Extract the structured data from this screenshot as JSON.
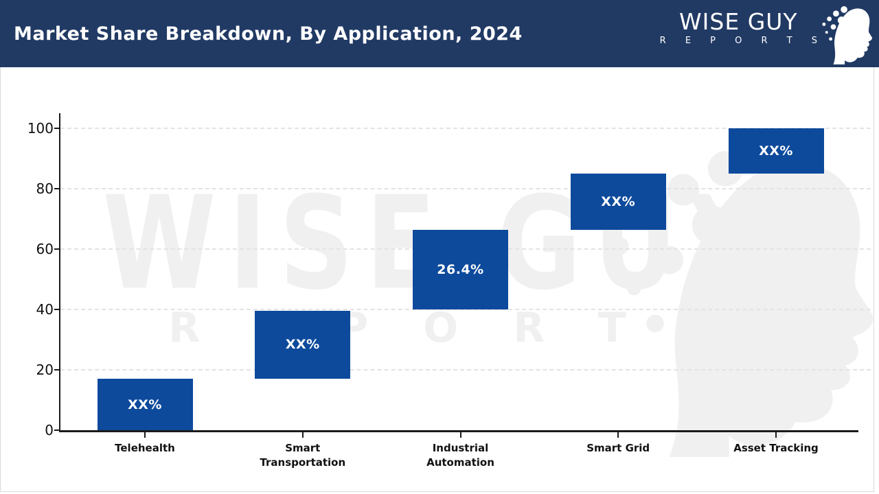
{
  "header": {
    "title": "Market Share Breakdown, By Application, 2024",
    "logo": {
      "line1": "WISE GUY",
      "line2": "R E P O R T S"
    }
  },
  "watermark": {
    "line1": "WISE GUY",
    "line2": "REPORTS"
  },
  "colors": {
    "header_bg": "#213a64",
    "bar": "#0d4a9c",
    "grid": "#e3e3e4",
    "axis": "#1a1a1a",
    "bar_label": "#ffffff",
    "watermark": "#f0f0f1"
  },
  "chart_data": {
    "type": "bar",
    "subtype": "waterfall",
    "title": "Market Share Breakdown, By Application, 2024",
    "categories": [
      "Telehealth",
      "Smart Transportation",
      "Industrial Automation",
      "Smart Grid",
      "Asset Tracking"
    ],
    "segments": [
      {
        "category": "Telehealth",
        "start": 0,
        "end": 17,
        "label": "XX%"
      },
      {
        "category": "Smart Transportation",
        "start": 17,
        "end": 39.6,
        "label": "XX%"
      },
      {
        "category": "Industrial Automation",
        "start": 40,
        "end": 66.4,
        "label": "26.4%"
      },
      {
        "category": "Smart Grid",
        "start": 66.4,
        "end": 85,
        "label": "XX%"
      },
      {
        "category": "Asset Tracking",
        "start": 85,
        "end": 100,
        "label": "XX%"
      }
    ],
    "ylim": [
      0,
      105
    ],
    "yticks": [
      0,
      20,
      40,
      60,
      80,
      100
    ],
    "grid": "horizontal-dashed",
    "legend": "none",
    "bar_value_labels_inside": true
  }
}
